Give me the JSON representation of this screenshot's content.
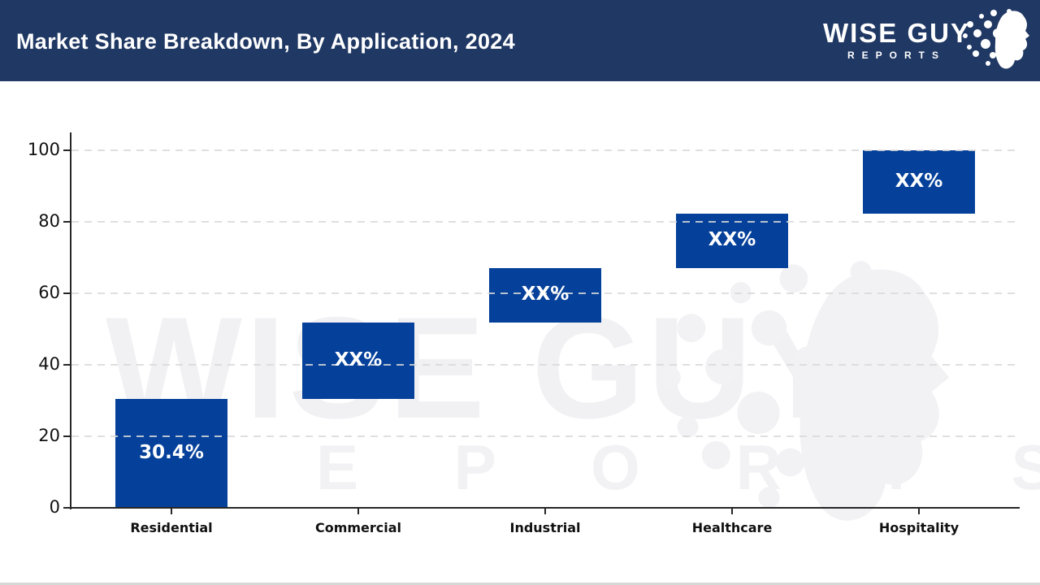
{
  "header": {
    "title": "Market Share Breakdown, By Application, 2024",
    "logo_line1": "WISE GUY",
    "logo_line2": "REPORTS"
  },
  "watermark": {
    "line1": "WISE GUY",
    "line2": "R E P O R T S"
  },
  "colors": {
    "header_bg": "#203864",
    "bar_fill": "#05419a",
    "axis": "#262626",
    "gridline": "#d9d9d9",
    "bar_label_text": "#ffffff",
    "watermark": "#f1f1f4"
  },
  "chart_data": {
    "type": "bar",
    "subtype": "waterfall",
    "title": "Market Share Breakdown, By Application, 2024",
    "xlabel": "",
    "ylabel": "",
    "categories": [
      "Residential",
      "Commercial",
      "Industrial",
      "Healthcare",
      "Hospitality"
    ],
    "segments": [
      {
        "category": "Residential",
        "start": 0,
        "end": 30.4,
        "label": "30.4%"
      },
      {
        "category": "Commercial",
        "start": 30.4,
        "end": 51.8,
        "label": "XX%"
      },
      {
        "category": "Industrial",
        "start": 51.8,
        "end": 67.1,
        "label": "XX%"
      },
      {
        "category": "Healthcare",
        "start": 67.1,
        "end": 82.3,
        "label": "XX%"
      },
      {
        "category": "Hospitality",
        "start": 82.3,
        "end": 100,
        "label": "XX%"
      }
    ],
    "yticks": [
      0,
      20,
      40,
      60,
      80,
      100
    ],
    "ylim": [
      0,
      105
    ],
    "grid": "dashed horizontal, drawn above bars",
    "legend": "none"
  }
}
